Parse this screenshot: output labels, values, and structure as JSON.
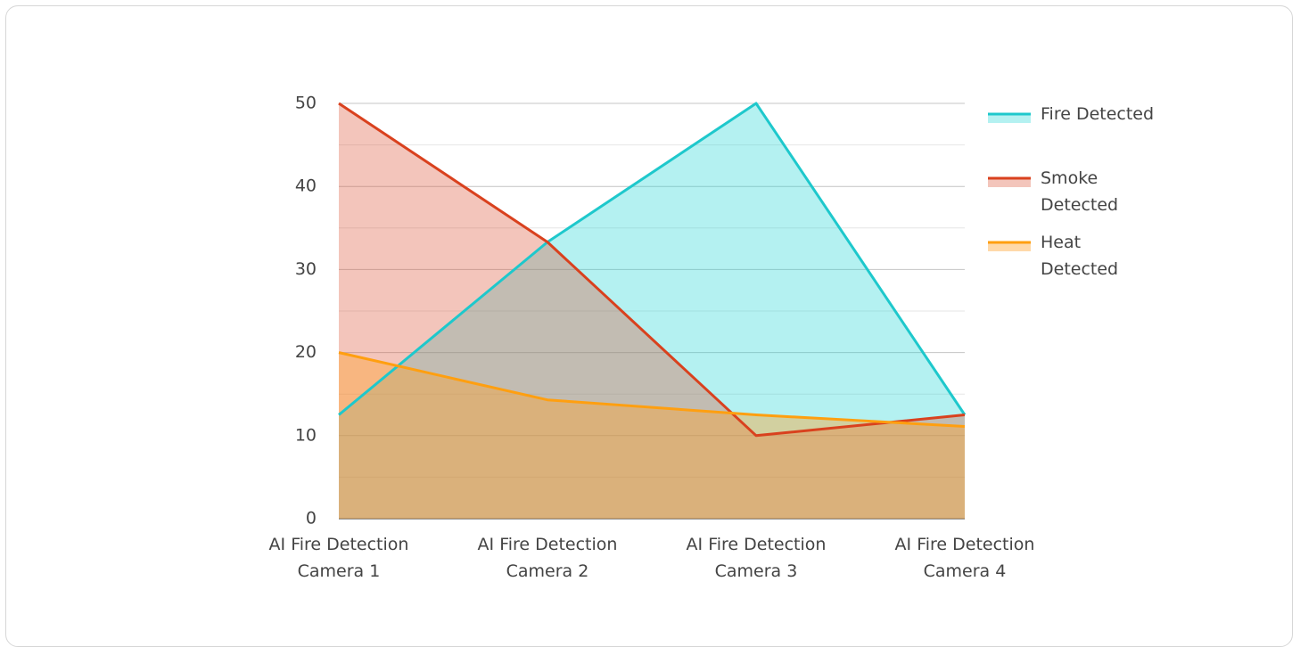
{
  "chart_data": {
    "type": "area",
    "categories": [
      "AI Fire Detection Camera 1",
      "AI Fire Detection Camera 2",
      "AI Fire Detection Camera 3",
      "AI Fire Detection Camera 4"
    ],
    "series": [
      {
        "name": "Fire Detected",
        "color": "#1ec8cc",
        "fill": "rgba(40,215,215,0.35)",
        "values": [
          12.5,
          33.3,
          50,
          12.5
        ]
      },
      {
        "name": "Smoke Detected",
        "color": "#d9411e",
        "fill": "rgba(222,90,60,0.35)",
        "values": [
          50,
          33.3,
          10,
          12.5
        ]
      },
      {
        "name": "Heat Detected",
        "color": "#ff9f10",
        "fill": "rgba(255,160,40,0.4)",
        "values": [
          20,
          14.3,
          12.5,
          11.1
        ]
      }
    ],
    "ylim": [
      0,
      50
    ],
    "yticks": [
      0,
      10,
      20,
      30,
      40,
      50
    ],
    "grid": true,
    "minor_grid": true,
    "legend": "right"
  }
}
